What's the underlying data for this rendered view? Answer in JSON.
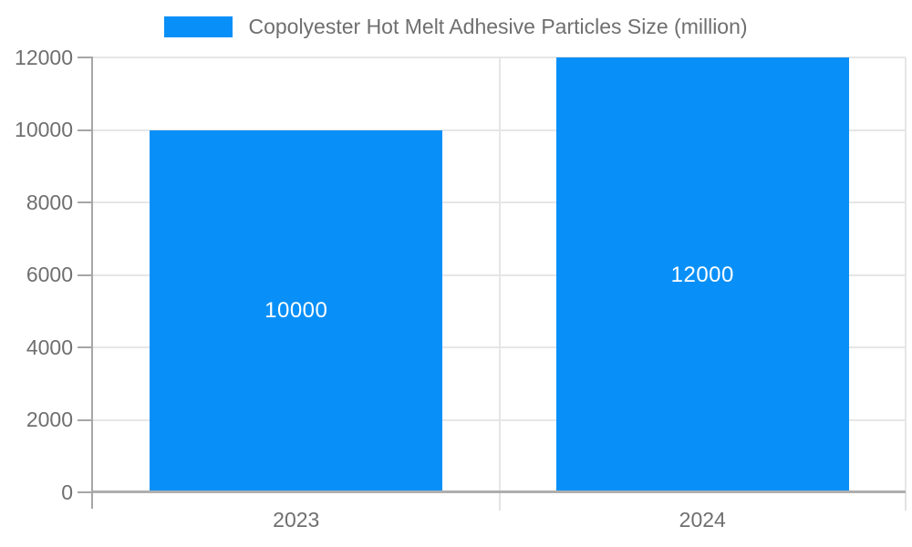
{
  "chart_data": {
    "type": "bar",
    "title": "Copolyester Hot Melt Adhesive Particles Size (million)",
    "categories": [
      "2023",
      "2024"
    ],
    "values": [
      10000,
      12000
    ],
    "bar_value_labels": [
      "10000",
      "12000"
    ],
    "ytick_labels": [
      "0",
      "2000",
      "4000",
      "6000",
      "8000",
      "10000",
      "12000"
    ],
    "yticks": [
      0,
      2000,
      4000,
      6000,
      8000,
      10000,
      12000
    ],
    "ylim": [
      0,
      12000
    ],
    "xlabel": "",
    "ylabel": "",
    "grid": true,
    "legend_position": "top-center",
    "colors": {
      "bar": "#0990f8",
      "bar_value_label": "#ffffff",
      "axis_text": "#6f6f6f",
      "gridline": "#e6e6e6",
      "axis_line": "#a6a6a6",
      "baseline": "#aeaeae",
      "background": "#ffffff"
    }
  }
}
